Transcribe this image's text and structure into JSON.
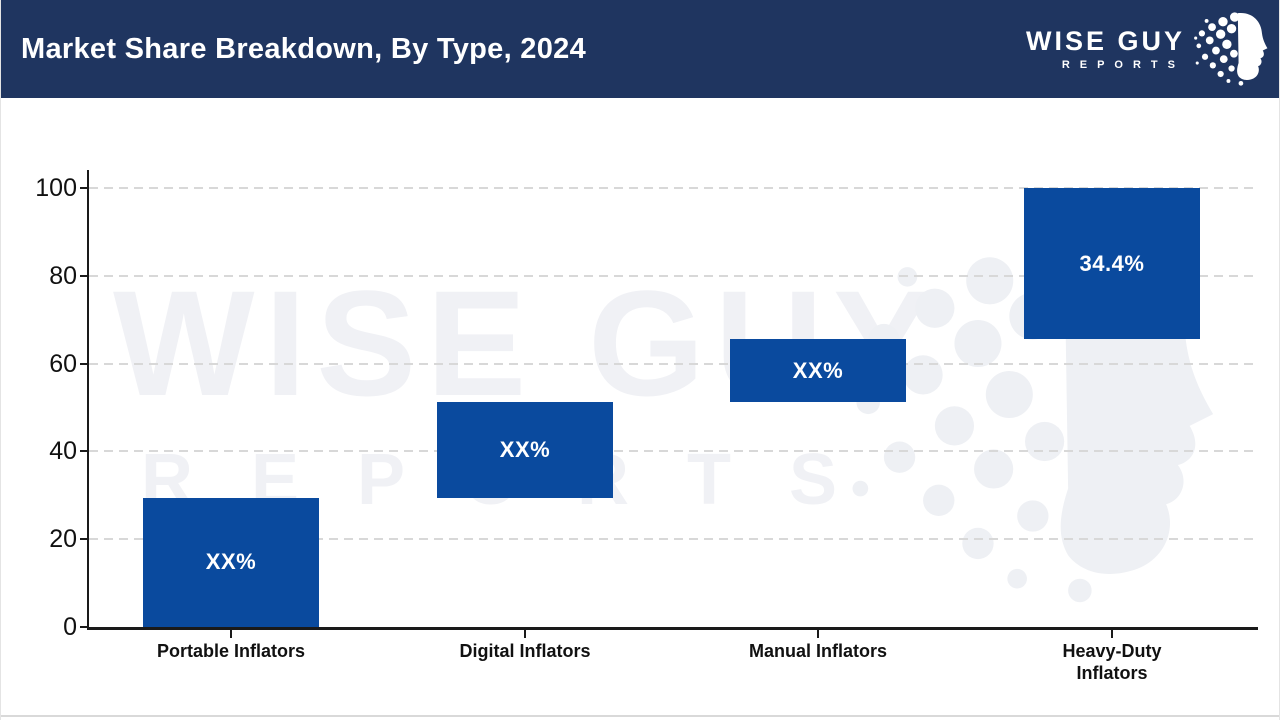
{
  "header": {
    "title": "Market Share Breakdown, By Type, 2024",
    "logo": {
      "line1": "WISE GUY",
      "line2": "REPORTS",
      "icon": "wiseguy-face-icon"
    }
  },
  "watermark": {
    "line1": "WISE GUY",
    "line2": "REPORTS",
    "icon": "wiseguy-face-watermark"
  },
  "colors": {
    "header_bg": "#1f3560",
    "bar": "#0a4a9e",
    "grid": "#d8d8d8",
    "axis": "#1a1a1a",
    "bar_label": "#ffffff",
    "watermark_text": "#f0f1f5"
  },
  "chart_data": {
    "type": "bar",
    "subtype": "waterfall",
    "title": "Market Share Breakdown, By Type, 2024",
    "categories": [
      "Portable Inflators",
      "Digital Inflators",
      "Manual Inflators",
      "Heavy-Duty\nInflators"
    ],
    "segments": [
      {
        "category": "Portable Inflators",
        "start": 0,
        "end": 29.4,
        "label": "XX%"
      },
      {
        "category": "Digital Inflators",
        "start": 29.4,
        "end": 51.2,
        "label": "XX%"
      },
      {
        "category": "Manual Inflators",
        "start": 51.2,
        "end": 65.6,
        "label": "XX%"
      },
      {
        "category": "Heavy-Duty\nInflators",
        "start": 65.6,
        "end": 100,
        "label": "34.4%"
      }
    ],
    "xlabel": "",
    "ylabel": "",
    "ylim": [
      0,
      100
    ],
    "yticks": [
      0,
      20,
      40,
      60,
      80,
      100
    ],
    "grid": "horizontal-dashed",
    "legend": "none"
  }
}
